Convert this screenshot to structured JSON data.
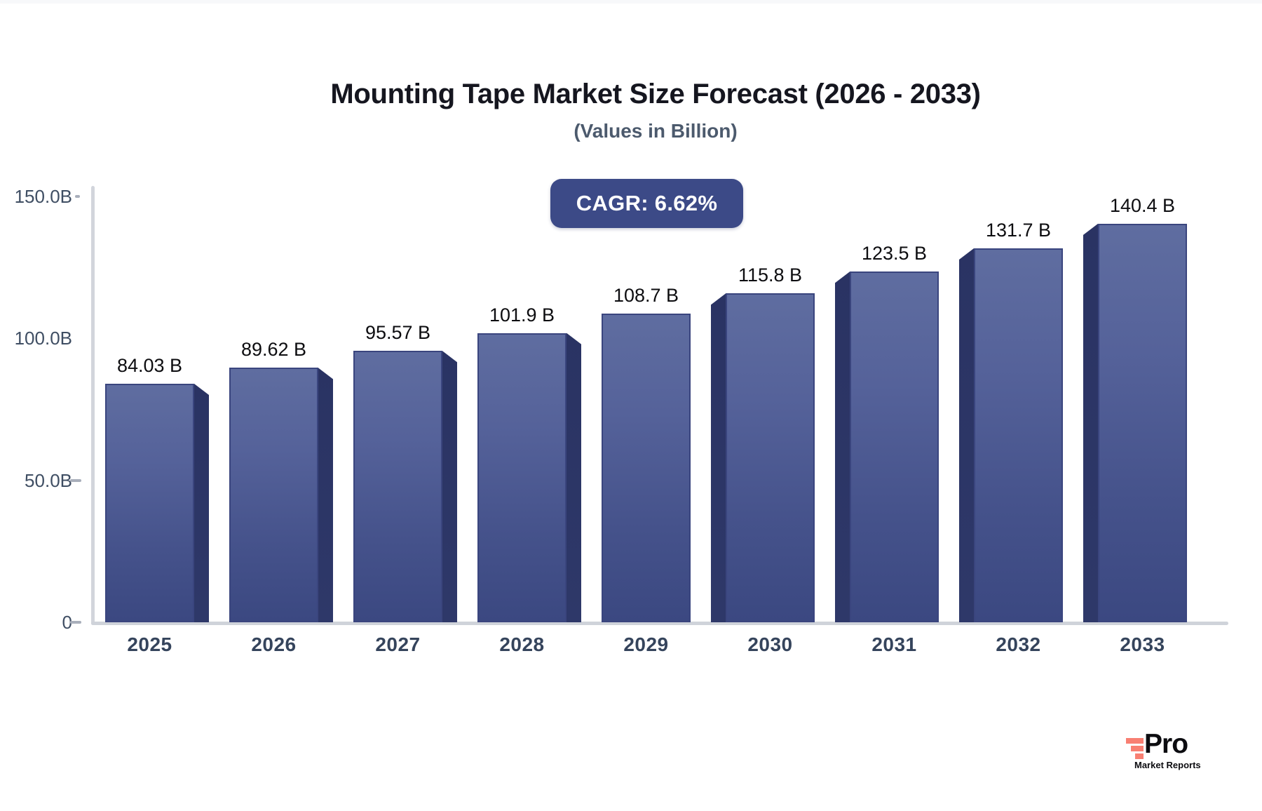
{
  "header": {
    "title": "Mounting Tape Market Size Forecast (2026 - 2033)",
    "subtitle": "(Values in Billion)",
    "cagr_label": "CAGR: 6.62%"
  },
  "chart_data": {
    "type": "bar",
    "title": "Mounting Tape Market Size Forecast (2026 - 2033)",
    "subtitle": "(Values in Billion)",
    "annotation": "CAGR: 6.62%",
    "categories": [
      "2025",
      "2026",
      "2027",
      "2028",
      "2029",
      "2030",
      "2031",
      "2032",
      "2033"
    ],
    "values": [
      84.03,
      89.62,
      95.57,
      101.9,
      108.7,
      115.8,
      123.5,
      131.7,
      140.4
    ],
    "value_labels": [
      "84.03 B",
      "89.62 B",
      "95.57 B",
      "101.9 B",
      "108.7 B",
      "115.8 B",
      "123.5 B",
      "131.7 B",
      "140.4 B"
    ],
    "xlabel": "",
    "ylabel": "",
    "ylim": [
      0,
      150
    ],
    "y_ticks": [
      {
        "label": "150.0B",
        "value": 150,
        "tick": "dot"
      },
      {
        "label": "100.0B",
        "value": 100,
        "tick": "none"
      },
      {
        "label": "50.0B",
        "value": 50,
        "tick": "dash"
      },
      {
        "label": "0",
        "value": 0,
        "tick": "dash"
      }
    ],
    "grid": false,
    "legend": false,
    "bar_style": "3d-column"
  },
  "colors": {
    "bar_face_top": "#5f6da0",
    "bar_face_bottom": "#3b4881",
    "bar_side": "#2a3363",
    "badge_bg": "#3c4a87",
    "badge_text": "#ffffff",
    "axis_line": "#d0d4db",
    "tick_label": "#3f4e63",
    "x_label": "#35445c",
    "value_label": "#0d0d10",
    "title_text": "#15161f",
    "subtitle_text": "#4c5a6d",
    "logo_accent": "#f87f72"
  },
  "logo": {
    "name": "Pro",
    "tagline": "Market Reports"
  }
}
